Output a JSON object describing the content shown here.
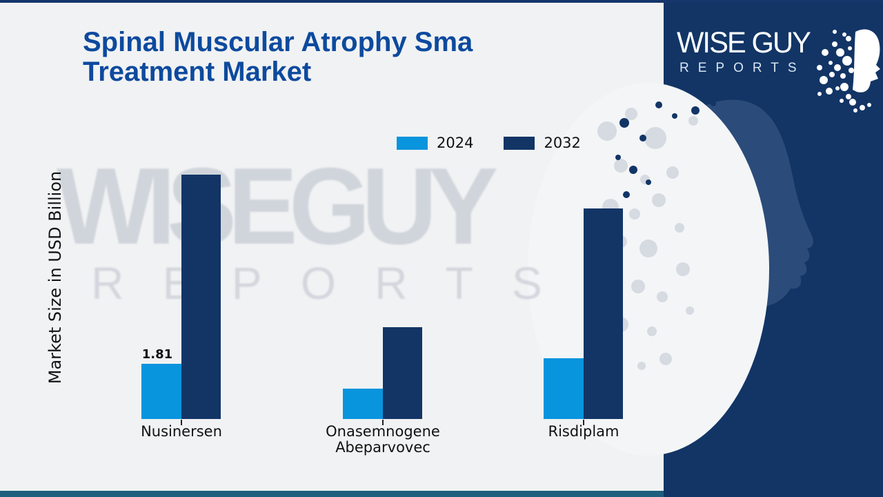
{
  "header": {
    "title_line1": "Spinal Muscular Atrophy Sma",
    "title_line2": "Treatment Market"
  },
  "ylabel": "Market Size in USD Billion",
  "logo": {
    "brand": "WISE GUY",
    "reports": "REPORTS"
  },
  "watermark": {
    "line1": "WISEGUY",
    "line2": "REPORTS"
  },
  "colors": {
    "background": "#f1f2f3",
    "title_blue": "#0d4a9e",
    "bar_2024": "#0994de",
    "bar_2032": "#123566",
    "panel_navy": "#123566",
    "bottom_strip_teal": "#1d5f7d",
    "watermark_gray": "#c9ced6"
  },
  "chart_data": {
    "type": "bar",
    "title": "Spinal Muscular Atrophy Sma Treatment Market",
    "xlabel": "",
    "ylabel": "Market Size in USD Billion",
    "categories": [
      "Nusinersen",
      "Onasemnogene Abeparvovec",
      "Risdiplam"
    ],
    "series": [
      {
        "name": "2024",
        "color": "#0994de",
        "values": [
          1.81,
          1.0,
          2.0
        ]
      },
      {
        "name": "2032",
        "color": "#123566",
        "values": [
          8.0,
          3.0,
          6.9
        ]
      }
    ],
    "annotations": [
      {
        "category_index": 0,
        "series_index": 0,
        "text": "1.81"
      }
    ],
    "ylim": [
      0,
      9
    ],
    "grid": false,
    "y_axis_ticks_visible": false,
    "legend_position": "top-center"
  }
}
